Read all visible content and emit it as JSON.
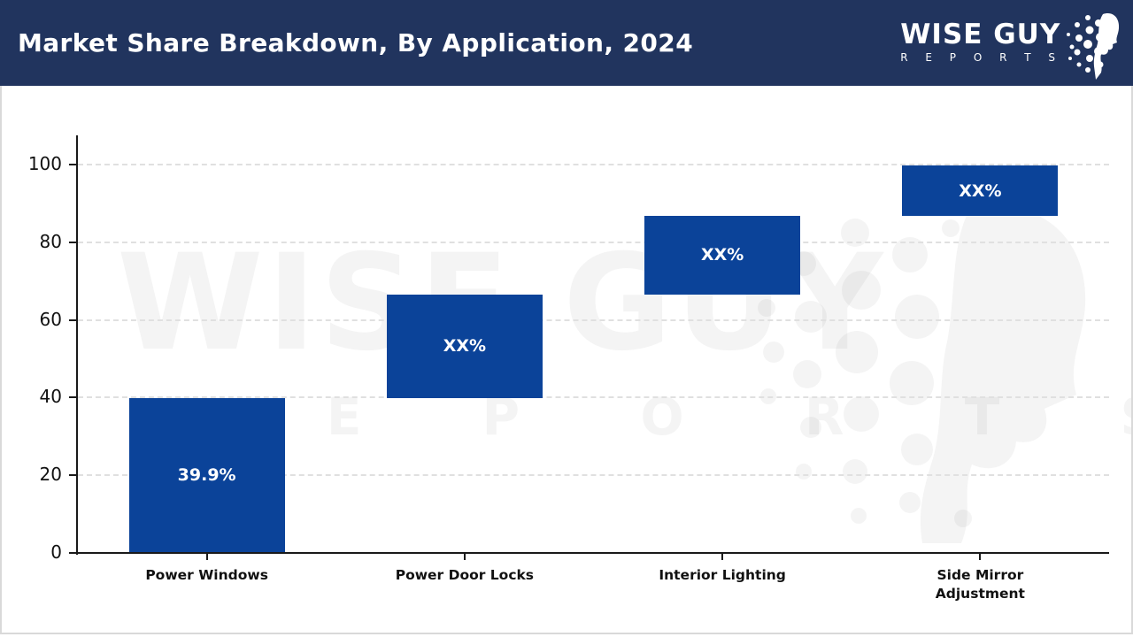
{
  "page": {
    "bg_color": "#ffffff",
    "frame_color": "#d9d9d9"
  },
  "header": {
    "bg_color": "#21345e",
    "title": "Market Share Breakdown, By Application, 2024",
    "logo": {
      "line1": "WISE GUY",
      "line2": "R E P O R T S"
    }
  },
  "watermark": {
    "line1": "WISE GUY",
    "line2": "R E P O R T S"
  },
  "chart_data": {
    "type": "bar",
    "subtype": "waterfall-breakdown",
    "title": "Market Share Breakdown, By Application, 2024",
    "categories": [
      "Power Windows",
      "Power Door Locks",
      "Interior Lighting",
      "Side Mirror Adjustment"
    ],
    "series": [
      {
        "name": "Market Share",
        "unit": "%",
        "segments": [
          {
            "category": "Power Windows",
            "start": 0,
            "end": 39.9,
            "label": "39.9%"
          },
          {
            "category": "Power Door Locks",
            "start": 39.9,
            "end": 66.6,
            "label": "XX%"
          },
          {
            "category": "Interior Lighting",
            "start": 66.6,
            "end": 86.7,
            "label": "XX%"
          },
          {
            "category": "Side Mirror Adjustment",
            "start": 86.7,
            "end": 99.7,
            "label": "XX%"
          }
        ]
      }
    ],
    "xlabel": "",
    "ylabel": "",
    "ylim": [
      0,
      100
    ],
    "yticks": [
      0,
      20,
      40,
      60,
      80,
      100
    ],
    "grid": "horizontal-dashed",
    "legend": "none",
    "colors": {
      "bar": "#0b4399",
      "bar_label": "#ffffff",
      "grid": "#e0e0e0",
      "axis": "#1a1a1a",
      "tick_label": "#111111",
      "category_label": "#111111"
    }
  }
}
